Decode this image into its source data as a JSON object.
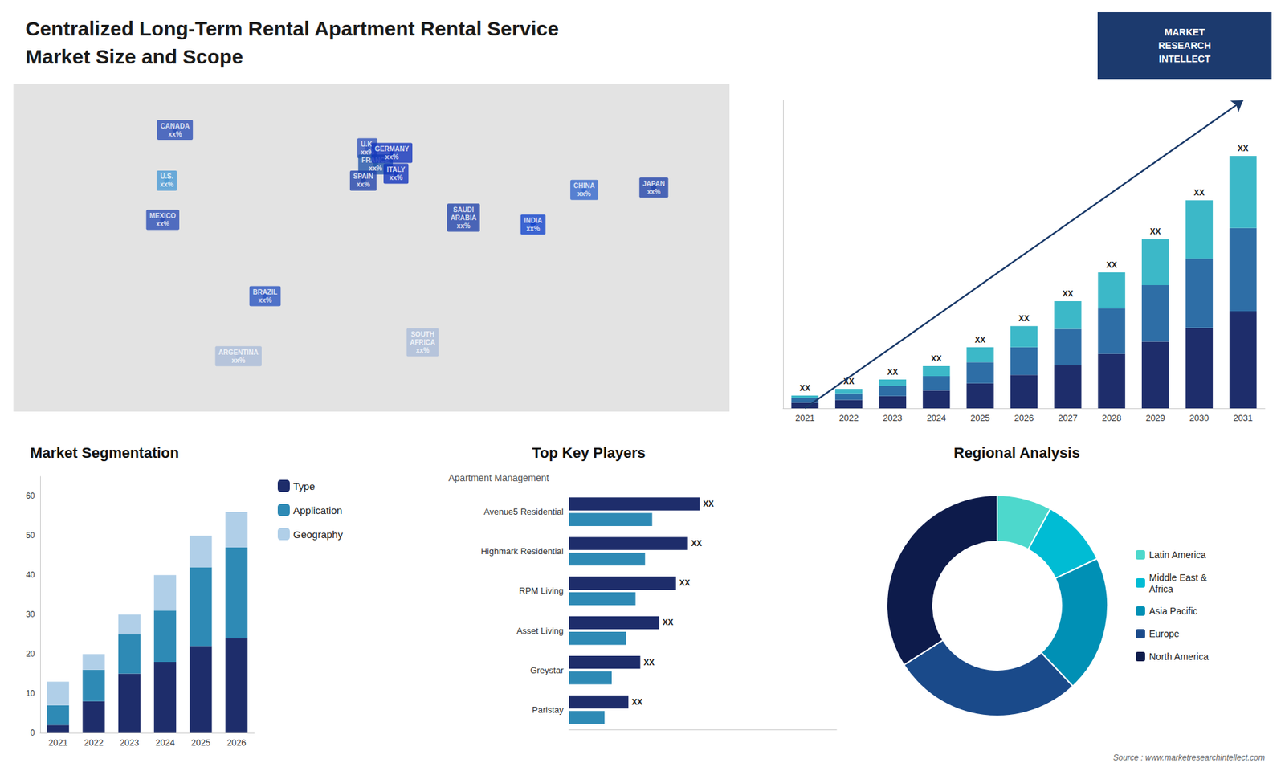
{
  "title": "Centralized Long-Term Rental Apartment Rental Service\nMarket Size and Scope",
  "annotations": [
    "MARKET\nRESEARCH\nINTELLECT",
    "Source : www.marketresearchintellect.com"
  ],
  "chart_data": [
    {
      "type": "map",
      "x": [
        -96,
        -100,
        -102,
        -52,
        -65,
        -2,
        2,
        -4,
        10,
        12,
        45,
        25,
        104,
        79,
        138
      ],
      "y": [
        62,
        40,
        23,
        -10,
        -36,
        54,
        47,
        40,
        52,
        43,
        24,
        -30,
        36,
        21,
        37
      ],
      "labels": [
        "CANADA\nxx%",
        "U.S.\nxx%",
        "MEXICO\nxx%",
        "BRAZIL\nxx%",
        "ARGENTINA\nxx%",
        "U.K.\nxx%",
        "FRANCE\nxx%",
        "SPAIN\nxx%",
        "GERMANY\nxx%",
        "ITALY\nxx%",
        "SAUDI\nARABIA\nxx%",
        "SOUTH\nAFRICA\nxx%",
        "CHINA\nxx%",
        "INDIA\nxx%",
        "JAPAN\nxx%"
      ],
      "colors": [
        "#2a4db5",
        "#4a9ad4",
        "#2a4db5",
        "#2a55c0",
        "#aabbd8",
        "#3355bb",
        "#2255aa",
        "#2244aa",
        "#1133bb",
        "#1133bb",
        "#2244aa",
        "#aabbd8",
        "#3366cc",
        "#1144cc",
        "#2244aa"
      ],
      "xlim": [
        -175,
        175
      ],
      "ylim": [
        -60,
        82
      ],
      "tick_labels": false,
      "grid": false
    },
    {
      "type": "bar",
      "stacked": true,
      "categories": [
        "2021",
        "2022",
        "2023",
        "2024",
        "2025",
        "2026",
        "2027",
        "2028",
        "2029",
        "2030",
        "2031"
      ],
      "series": [
        {
          "color": "#1e2d6b",
          "values": [
            1.0,
            1.5,
            2.2,
            3.2,
            4.5,
            6.0,
            7.8,
            9.8,
            12.0,
            14.5,
            17.5
          ]
        },
        {
          "color": "#2e6ea6",
          "values": [
            0.8,
            1.2,
            1.8,
            2.6,
            3.8,
            5.0,
            6.5,
            8.2,
            10.2,
            12.5,
            15.0
          ]
        },
        {
          "color": "#3cb8c8",
          "values": [
            0.5,
            0.8,
            1.2,
            1.8,
            2.7,
            3.8,
            5.0,
            6.5,
            8.3,
            10.5,
            13.0
          ],
          "value_labels": [
            "XX",
            "XX",
            "XX",
            "XX",
            "XX",
            "XX",
            "XX",
            "XX",
            "XX",
            "XX",
            "XX"
          ]
        }
      ],
      "ylim": [
        0,
        55.51
      ],
      "tick_labels": "x",
      "grid": false
    },
    {
      "type": "bar",
      "stacked": true,
      "title": "Market Segmentation",
      "categories": [
        "2021",
        "2022",
        "2023",
        "2024",
        "2025",
        "2026"
      ],
      "series": [
        {
          "name": "Type",
          "color": "#1e2d6b",
          "values": [
            2,
            8,
            15,
            18,
            22,
            24
          ]
        },
        {
          "name": "Application",
          "color": "#2e8ab5",
          "values": [
            5,
            8,
            10,
            13,
            20,
            23
          ]
        },
        {
          "name": "Geography",
          "color": "#b0cfe8",
          "values": [
            6,
            4,
            5,
            9,
            8,
            9
          ]
        }
      ],
      "ylim": [
        0,
        65
      ],
      "yticks": [
        0,
        10,
        20,
        30,
        40,
        50,
        60
      ],
      "legend": "right",
      "grid": false
    },
    {
      "type": "bar",
      "orientation": "horizontal",
      "title": "Top Key Players",
      "subtitle": "Apartment Management",
      "categories": [
        "Avenue5 Residential",
        "Highmark Residential",
        "RPM Living",
        "Asset Living",
        "Greystar",
        "Paristay"
      ],
      "series": [
        {
          "color": "#1e2d6b",
          "values": [
            5.5,
            5.0,
            4.5,
            3.8,
            3.0,
            2.5
          ],
          "value_labels": [
            "XX",
            "XX",
            "XX",
            "XX",
            "XX",
            "XX"
          ]
        },
        {
          "color": "#2e8ab5",
          "values": [
            3.5,
            3.2,
            2.8,
            2.4,
            1.8,
            1.5
          ]
        }
      ],
      "xlim": [
        0,
        11.25
      ],
      "tick_labels": "y",
      "grid": false
    },
    {
      "type": "donut",
      "title": "Regional Analysis",
      "categories": [
        "Latin America",
        "Middle East &\nAfrica",
        "Asia Pacific",
        "Europe",
        "North America"
      ],
      "values": [
        8,
        10,
        20,
        28,
        34
      ],
      "colors": [
        "#4dd8cc",
        "#00bcd4",
        "#0090b5",
        "#1a4a8a",
        "#0d1b4b"
      ],
      "legend": "right"
    }
  ]
}
